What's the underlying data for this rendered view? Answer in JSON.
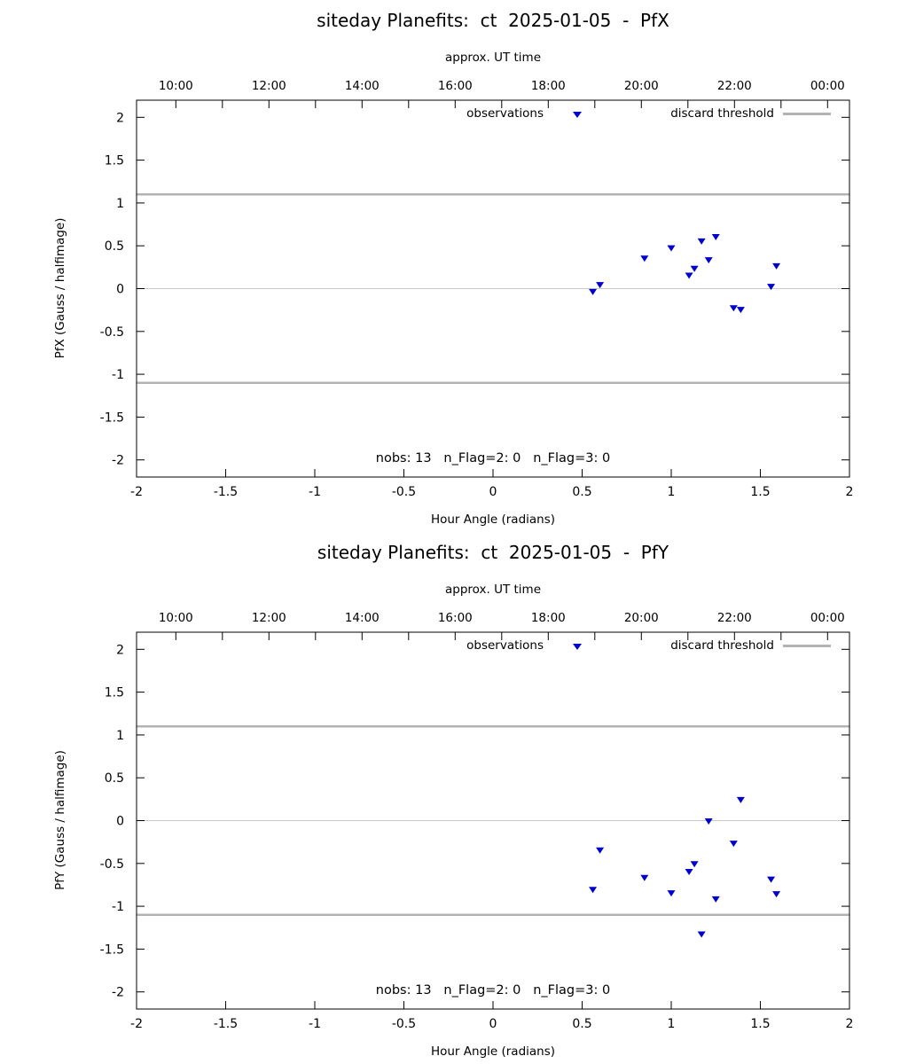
{
  "chart_data": [
    {
      "type": "scatter",
      "title": "siteday Planefits:  ct  2025-01-05  -  PfX",
      "x2label": "approx. UT time",
      "ylabel": "PfX (Gauss / halfimage)",
      "xlabel": "Hour Angle (radians)",
      "annotation": "nobs: 13   n_Flag=2: 0   n_Flag=3: 0",
      "xlim": [
        -2,
        2
      ],
      "ylim": [
        -2.2,
        2.2
      ],
      "grid": false,
      "legend_position": "top-inside",
      "x_ticks": [
        -2,
        -1.5,
        -1,
        -0.5,
        0,
        0.5,
        1,
        1.5,
        2
      ],
      "x_tick_labels": [
        "-2",
        "-1.5",
        "-1",
        "-0.5",
        "0",
        "0.5",
        "1",
        "1.5",
        "2"
      ],
      "y_ticks": [
        -2,
        -1.5,
        -1,
        -0.5,
        0,
        0.5,
        1,
        1.5,
        2
      ],
      "y_tick_labels": [
        "-2",
        "-1.5",
        "-1",
        "-0.5",
        "0",
        "0.5",
        "1",
        "1.5",
        "2"
      ],
      "x2_tick_labels": [
        "10:00",
        "12:00",
        "14:00",
        "16:00",
        "18:00",
        "20:00",
        "22:00",
        "00:00"
      ],
      "zero_line": {
        "value": 0,
        "color": "#c8c8c8"
      },
      "threshold": {
        "name": "discard threshold",
        "color": "#b3b3b3",
        "values": [
          1.1,
          -1.1
        ]
      },
      "series": [
        {
          "name": "observations",
          "marker": "triangle-down",
          "color": "#0000cc",
          "x": [
            0.56,
            0.6,
            0.85,
            1.0,
            1.1,
            1.13,
            1.17,
            1.21,
            1.25,
            1.35,
            1.39,
            1.56,
            1.59
          ],
          "y": [
            -0.04,
            0.04,
            0.35,
            0.47,
            0.15,
            0.23,
            0.55,
            0.33,
            0.6,
            -0.23,
            -0.25,
            0.02,
            0.26
          ]
        }
      ]
    },
    {
      "type": "scatter",
      "title": "siteday Planefits:  ct  2025-01-05  -  PfY",
      "x2label": "approx. UT time",
      "ylabel": "PfY (Gauss / halfimage)",
      "xlabel": "Hour Angle (radians)",
      "annotation": "nobs: 13   n_Flag=2: 0   n_Flag=3: 0",
      "xlim": [
        -2,
        2
      ],
      "ylim": [
        -2.2,
        2.2
      ],
      "grid": false,
      "legend_position": "top-inside",
      "x_ticks": [
        -2,
        -1.5,
        -1,
        -0.5,
        0,
        0.5,
        1,
        1.5,
        2
      ],
      "x_tick_labels": [
        "-2",
        "-1.5",
        "-1",
        "-0.5",
        "0",
        "0.5",
        "1",
        "1.5",
        "2"
      ],
      "y_ticks": [
        -2,
        -1.5,
        -1,
        -0.5,
        0,
        0.5,
        1,
        1.5,
        2
      ],
      "y_tick_labels": [
        "-2",
        "-1.5",
        "-1",
        "-0.5",
        "0",
        "0.5",
        "1",
        "1.5",
        "2"
      ],
      "x2_tick_labels": [
        "10:00",
        "12:00",
        "14:00",
        "16:00",
        "18:00",
        "20:00",
        "22:00",
        "00:00"
      ],
      "zero_line": {
        "value": 0,
        "color": "#c8c8c8"
      },
      "threshold": {
        "name": "discard threshold",
        "color": "#b3b3b3",
        "values": [
          1.1,
          -1.1
        ]
      },
      "series": [
        {
          "name": "observations",
          "marker": "triangle-down",
          "color": "#0000cc",
          "x": [
            0.56,
            0.6,
            0.85,
            1.0,
            1.1,
            1.13,
            1.17,
            1.21,
            1.25,
            1.35,
            1.39,
            1.56,
            1.59
          ],
          "y": [
            -0.81,
            -0.35,
            -0.67,
            -0.85,
            -0.6,
            -0.51,
            -1.33,
            -0.01,
            -0.92,
            -0.27,
            0.24,
            -0.69,
            -0.86
          ]
        }
      ]
    }
  ]
}
